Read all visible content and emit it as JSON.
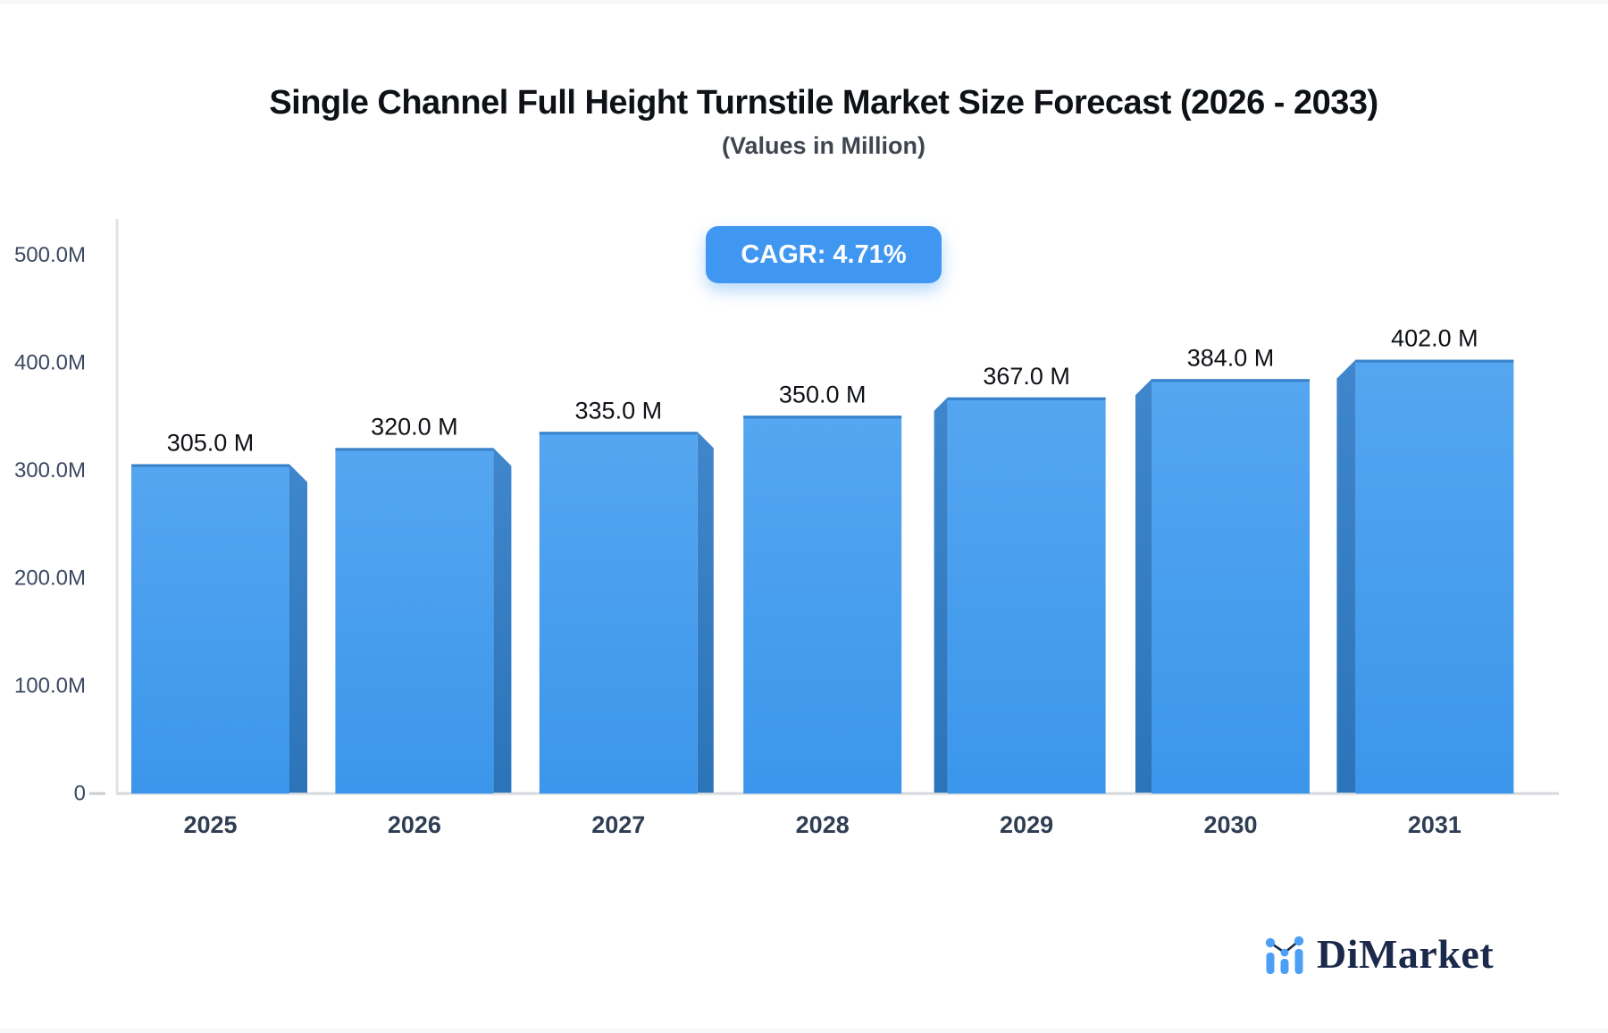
{
  "header": {
    "title": "Single Channel Full Height Turnstile Market Size Forecast (2026 - 2033)",
    "subtitle": "(Values in Million)",
    "cagr_label": "CAGR: 4.71%"
  },
  "branding": {
    "logo_text": "DiMarket",
    "logo_icon": "mini-bar-chart-icon"
  },
  "colors": {
    "accent": "#3F97F1",
    "badge_text": "#FFFFFF",
    "bar_face_top": "#55A6F0",
    "bar_face_bottom": "#3B96EB",
    "bar_side_top": "#3F86CC",
    "bar_side_bottom": "#2C74B9",
    "bar_top_edge": "#3781C9",
    "axis_line": "#E0E4E9",
    "baseline": "#D5D9DE",
    "zero_tick": "#C7CCD3",
    "tick_label": "#3C4961",
    "x_label": "#2F3E53",
    "value_label": "#0E1116",
    "title_text": "#0E1116",
    "subtitle_text": "#3F4651",
    "logo_text": "#1B2A4A",
    "logo_blue": "#4D9FF5",
    "logo_line": "#1B2A4A"
  },
  "chart_data": {
    "type": "bar",
    "title": "Single Channel Full Height Turnstile Market Size Forecast (2026 - 2033)",
    "subtitle": "(Values in Million)",
    "cagr_pct": 4.71,
    "unit": "Million",
    "categories": [
      "2025",
      "2026",
      "2027",
      "2028",
      "2029",
      "2030",
      "2031"
    ],
    "values": [
      305,
      320,
      335,
      350,
      367,
      384,
      402
    ],
    "value_labels": [
      "305.0 M",
      "320.0 M",
      "335.0 M",
      "350.0 M",
      "367.0 M",
      "384.0 M",
      "402.0 M"
    ],
    "y_ticks": [
      {
        "value": 0,
        "label": "0"
      },
      {
        "value": 100,
        "label": "100.0M"
      },
      {
        "value": 200,
        "label": "200.0M"
      },
      {
        "value": 300,
        "label": "300.0M"
      },
      {
        "value": 400,
        "label": "400.0M"
      },
      {
        "value": 500,
        "label": "500.0M"
      }
    ],
    "ylim": [
      0,
      500
    ],
    "xlabel": "",
    "ylabel": "",
    "grid": false,
    "legend": false,
    "style": "pseudo-3d bars with center perspective"
  }
}
